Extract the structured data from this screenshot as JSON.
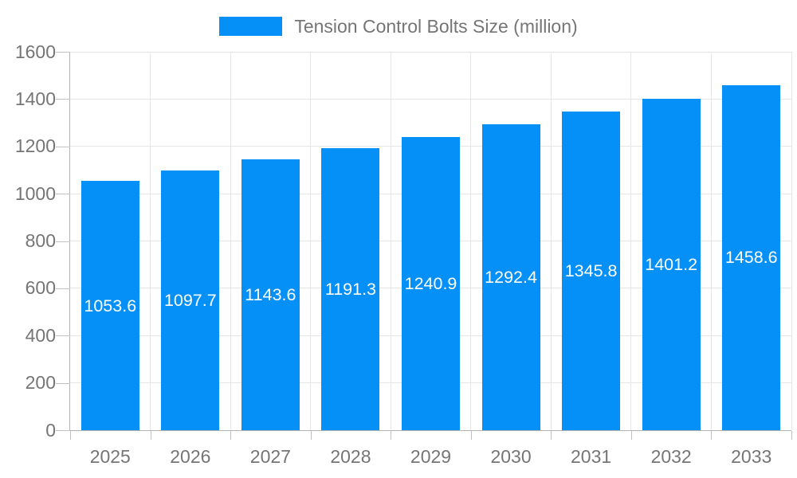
{
  "chart_data": {
    "type": "bar",
    "title": "Tension Control Bolts Size (million)",
    "categories": [
      "2025",
      "2026",
      "2027",
      "2028",
      "2029",
      "2030",
      "2031",
      "2032",
      "2033"
    ],
    "values": [
      1053.6,
      1097.7,
      1143.6,
      1191.3,
      1240.9,
      1292.4,
      1345.8,
      1401.2,
      1458.6
    ],
    "value_labels": [
      "1053.6",
      "1097.7",
      "1143.6",
      "1191.3",
      "1240.9",
      "1292.4",
      "1345.8",
      "1401.2",
      "1458.6"
    ],
    "xlabel": "",
    "ylabel": "",
    "ylim": [
      0,
      1600
    ],
    "ytick_step": 200,
    "grid": true,
    "legend_position": "top",
    "colors": {
      "bar": "#0590f8",
      "value_label_text": "#ffffff",
      "axis_text": "#757575",
      "legend_text": "#757575",
      "gridline": "#e6e6e6",
      "axis_line": "#b3b3b3",
      "tick": "#c2c2c2",
      "background": "#ffffff"
    }
  }
}
